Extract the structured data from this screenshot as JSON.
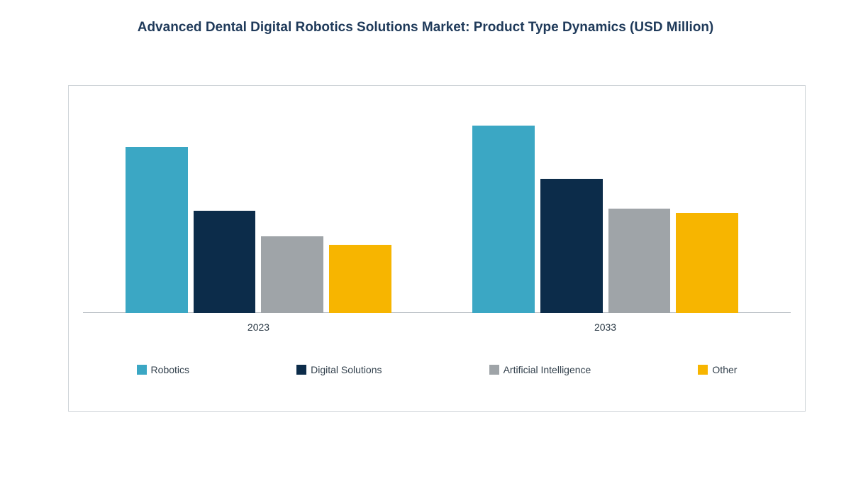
{
  "chart": {
    "type": "grouped-bar",
    "title": "Advanced Dental Digital Robotics Solutions Market: Product Type Dynamics (USD Million)",
    "title_fontsize": 19,
    "title_color": "#1f3a5a",
    "background_color": "#ffffff",
    "frame_border_color": "#cfd4d8",
    "baseline_color": "#b9bfc4",
    "y_max": 100,
    "groups": [
      {
        "label": "2023",
        "left_pct": 6,
        "width_pct": 40,
        "bars": [
          {
            "series": "Robotics",
            "value": 78
          },
          {
            "series": "Digital Solutions",
            "value": 48
          },
          {
            "series": "Artificial Intelligence",
            "value": 36
          },
          {
            "series": "Other",
            "value": 32
          }
        ]
      },
      {
        "label": "2033",
        "left_pct": 55,
        "width_pct": 40,
        "bars": [
          {
            "series": "Robotics",
            "value": 88
          },
          {
            "series": "Digital Solutions",
            "value": 63
          },
          {
            "series": "Artificial Intelligence",
            "value": 49
          },
          {
            "series": "Other",
            "value": 47
          }
        ]
      }
    ],
    "bar_width_pct_of_group": 22,
    "bar_gap_pct_of_group": 2,
    "series": [
      {
        "name": "Robotics",
        "color": "#3ba7c4"
      },
      {
        "name": "Digital Solutions",
        "color": "#0c2c4a"
      },
      {
        "name": "Artificial Intelligence",
        "color": "#9fa4a8"
      },
      {
        "name": "Other",
        "color": "#f7b500"
      }
    ],
    "xlabel_fontsize": 14,
    "xlabel_color": "#2b3a46",
    "legend_fontsize": 14,
    "legend_color": "#33414d"
  }
}
